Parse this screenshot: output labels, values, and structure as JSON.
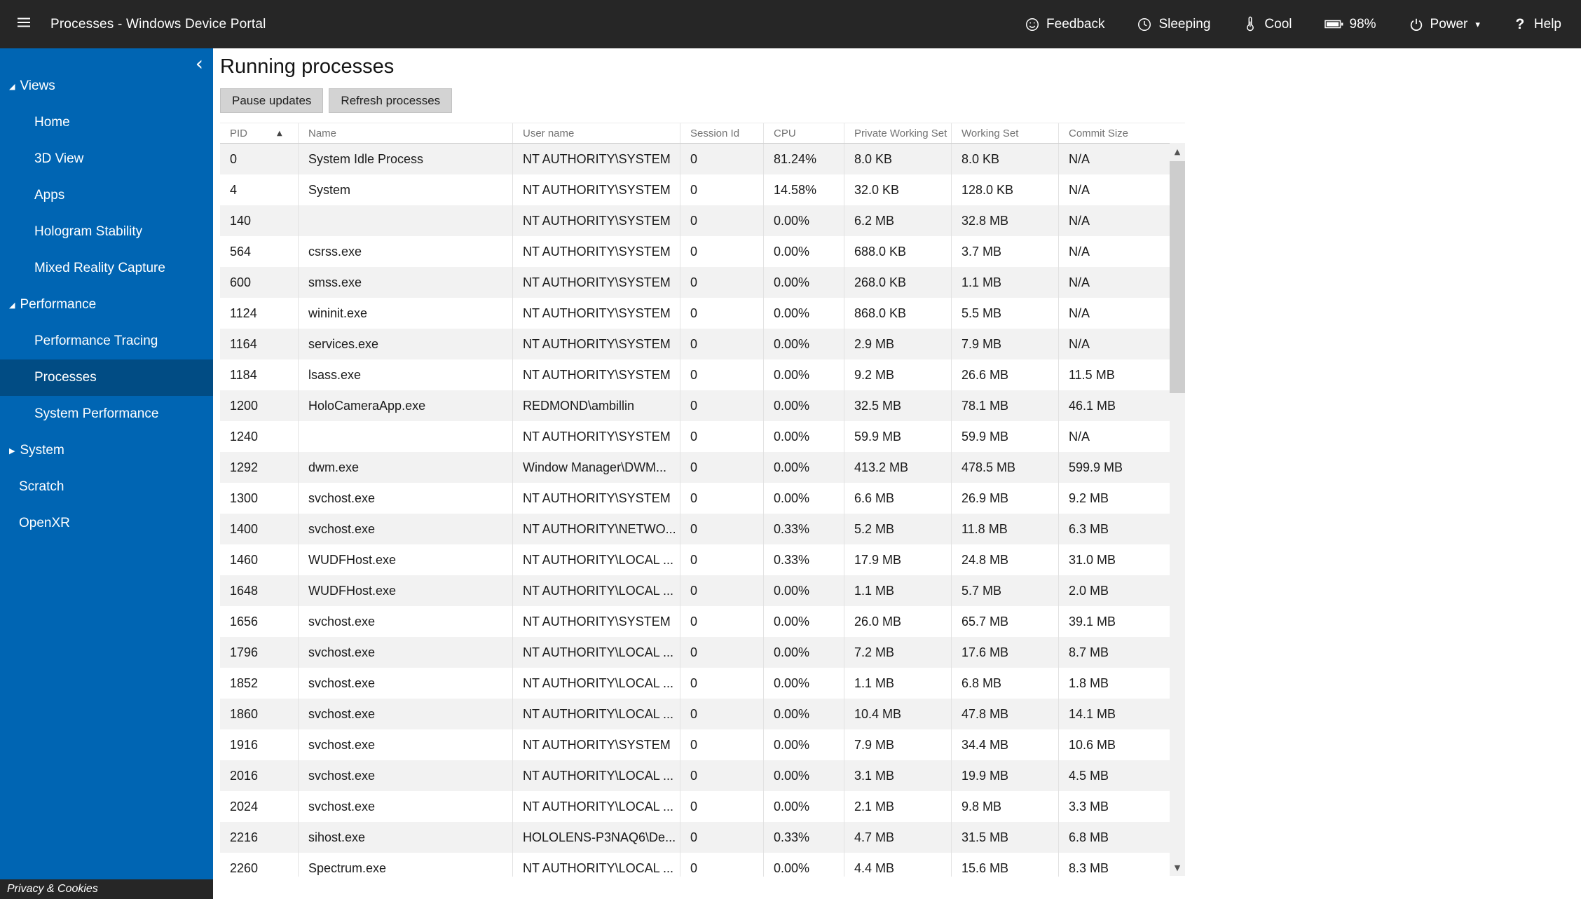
{
  "topbar": {
    "title": "Processes - Windows Device Portal",
    "items": [
      {
        "name": "feedback",
        "icon": "smiley-icon",
        "label": "Feedback"
      },
      {
        "name": "power-state",
        "icon": "clock-icon",
        "label": "Sleeping"
      },
      {
        "name": "thermal",
        "icon": "thermometer-icon",
        "label": "Cool"
      },
      {
        "name": "battery",
        "icon": "battery-icon",
        "label": "98%"
      },
      {
        "name": "power",
        "icon": "power-icon",
        "label": "Power",
        "caret": "▾"
      },
      {
        "name": "help",
        "icon": "question-icon",
        "label": "Help"
      }
    ]
  },
  "sidebar": {
    "collapse_glyph": "‹",
    "items": [
      {
        "label": "Views",
        "type": "section",
        "state": "expanded",
        "glyph": "◢"
      },
      {
        "label": "Home",
        "type": "item"
      },
      {
        "label": "3D View",
        "type": "item"
      },
      {
        "label": "Apps",
        "type": "item"
      },
      {
        "label": "Hologram Stability",
        "type": "item"
      },
      {
        "label": "Mixed Reality Capture",
        "type": "item"
      },
      {
        "label": "Performance",
        "type": "section",
        "state": "expanded",
        "glyph": "◢"
      },
      {
        "label": "Performance Tracing",
        "type": "item"
      },
      {
        "label": "Processes",
        "type": "item",
        "selected": true
      },
      {
        "label": "System Performance",
        "type": "item"
      },
      {
        "label": "System",
        "type": "section",
        "state": "collapsed",
        "glyph": "▶"
      },
      {
        "label": "Scratch",
        "type": "top"
      },
      {
        "label": "OpenXR",
        "type": "top"
      }
    ],
    "privacy_link": "Privacy & Cookies"
  },
  "main": {
    "title": "Running processes",
    "buttons": {
      "pause": "Pause updates",
      "refresh": "Refresh processes"
    }
  },
  "table": {
    "sort_column": "PID",
    "sort_glyph": "▲",
    "scroll_up_glyph": "▲",
    "scroll_down_glyph": "▼",
    "columns": [
      {
        "key": "pid",
        "label": "PID"
      },
      {
        "key": "name",
        "label": "Name"
      },
      {
        "key": "user_name",
        "label": "User name"
      },
      {
        "key": "session_id",
        "label": "Session Id"
      },
      {
        "key": "cpu",
        "label": "CPU"
      },
      {
        "key": "private_working_set",
        "label": "Private Working Set"
      },
      {
        "key": "working_set",
        "label": "Working Set"
      },
      {
        "key": "commit_size",
        "label": "Commit Size"
      }
    ],
    "rows": [
      [
        "0",
        "System Idle Process",
        "NT AUTHORITY\\SYSTEM",
        "0",
        "81.24%",
        "8.0 KB",
        "8.0 KB",
        "N/A"
      ],
      [
        "4",
        "System",
        "NT AUTHORITY\\SYSTEM",
        "0",
        "14.58%",
        "32.0 KB",
        "128.0 KB",
        "N/A"
      ],
      [
        "140",
        "",
        "NT AUTHORITY\\SYSTEM",
        "0",
        "0.00%",
        "6.2 MB",
        "32.8 MB",
        "N/A"
      ],
      [
        "564",
        "csrss.exe",
        "NT AUTHORITY\\SYSTEM",
        "0",
        "0.00%",
        "688.0 KB",
        "3.7 MB",
        "N/A"
      ],
      [
        "600",
        "smss.exe",
        "NT AUTHORITY\\SYSTEM",
        "0",
        "0.00%",
        "268.0 KB",
        "1.1 MB",
        "N/A"
      ],
      [
        "1124",
        "wininit.exe",
        "NT AUTHORITY\\SYSTEM",
        "0",
        "0.00%",
        "868.0 KB",
        "5.5 MB",
        "N/A"
      ],
      [
        "1164",
        "services.exe",
        "NT AUTHORITY\\SYSTEM",
        "0",
        "0.00%",
        "2.9 MB",
        "7.9 MB",
        "N/A"
      ],
      [
        "1184",
        "lsass.exe",
        "NT AUTHORITY\\SYSTEM",
        "0",
        "0.00%",
        "9.2 MB",
        "26.6 MB",
        "11.5 MB"
      ],
      [
        "1200",
        "HoloCameraApp.exe",
        "REDMOND\\ambillin",
        "0",
        "0.00%",
        "32.5 MB",
        "78.1 MB",
        "46.1 MB"
      ],
      [
        "1240",
        "",
        "NT AUTHORITY\\SYSTEM",
        "0",
        "0.00%",
        "59.9 MB",
        "59.9 MB",
        "N/A"
      ],
      [
        "1292",
        "dwm.exe",
        "Window Manager\\DWM...",
        "0",
        "0.00%",
        "413.2 MB",
        "478.5 MB",
        "599.9 MB"
      ],
      [
        "1300",
        "svchost.exe",
        "NT AUTHORITY\\SYSTEM",
        "0",
        "0.00%",
        "6.6 MB",
        "26.9 MB",
        "9.2 MB"
      ],
      [
        "1400",
        "svchost.exe",
        "NT AUTHORITY\\NETWO...",
        "0",
        "0.33%",
        "5.2 MB",
        "11.8 MB",
        "6.3 MB"
      ],
      [
        "1460",
        "WUDFHost.exe",
        "NT AUTHORITY\\LOCAL ...",
        "0",
        "0.33%",
        "17.9 MB",
        "24.8 MB",
        "31.0 MB"
      ],
      [
        "1648",
        "WUDFHost.exe",
        "NT AUTHORITY\\LOCAL ...",
        "0",
        "0.00%",
        "1.1 MB",
        "5.7 MB",
        "2.0 MB"
      ],
      [
        "1656",
        "svchost.exe",
        "NT AUTHORITY\\SYSTEM",
        "0",
        "0.00%",
        "26.0 MB",
        "65.7 MB",
        "39.1 MB"
      ],
      [
        "1796",
        "svchost.exe",
        "NT AUTHORITY\\LOCAL ...",
        "0",
        "0.00%",
        "7.2 MB",
        "17.6 MB",
        "8.7 MB"
      ],
      [
        "1852",
        "svchost.exe",
        "NT AUTHORITY\\LOCAL ...",
        "0",
        "0.00%",
        "1.1 MB",
        "6.8 MB",
        "1.8 MB"
      ],
      [
        "1860",
        "svchost.exe",
        "NT AUTHORITY\\LOCAL ...",
        "0",
        "0.00%",
        "10.4 MB",
        "47.8 MB",
        "14.1 MB"
      ],
      [
        "1916",
        "svchost.exe",
        "NT AUTHORITY\\SYSTEM",
        "0",
        "0.00%",
        "7.9 MB",
        "34.4 MB",
        "10.6 MB"
      ],
      [
        "2016",
        "svchost.exe",
        "NT AUTHORITY\\LOCAL ...",
        "0",
        "0.00%",
        "3.1 MB",
        "19.9 MB",
        "4.5 MB"
      ],
      [
        "2024",
        "svchost.exe",
        "NT AUTHORITY\\LOCAL ...",
        "0",
        "0.00%",
        "2.1 MB",
        "9.8 MB",
        "3.3 MB"
      ],
      [
        "2216",
        "sihost.exe",
        "HOLOLENS-P3NAQ6\\De...",
        "0",
        "0.33%",
        "4.7 MB",
        "31.5 MB",
        "6.8 MB"
      ],
      [
        "2260",
        "Spectrum.exe",
        "NT AUTHORITY\\LOCAL ...",
        "0",
        "0.00%",
        "4.4 MB",
        "15.6 MB",
        "8.3 MB"
      ]
    ]
  }
}
